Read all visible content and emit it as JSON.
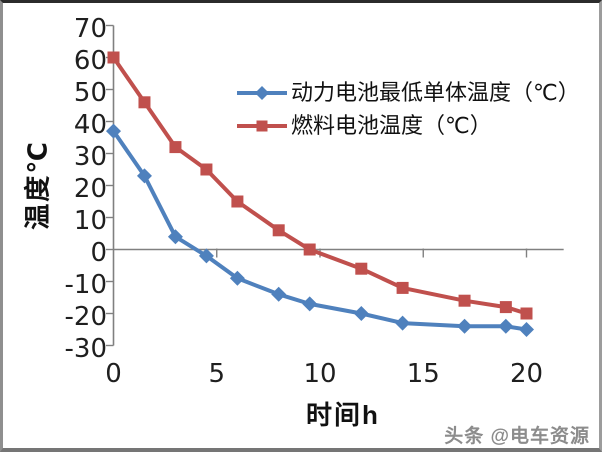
{
  "watermark": {
    "text": "头条 @电车资源",
    "color": "#8c8c8c"
  },
  "chart_data": {
    "type": "line",
    "title": "",
    "xlabel": "时间h",
    "ylabel": "温度℃",
    "x": [
      0,
      1.5,
      3,
      4.5,
      6,
      8,
      9.5,
      12,
      14,
      17,
      19,
      20
    ],
    "series": [
      {
        "name": "动力电池最低单体温度（℃）",
        "color": "#4F81BD",
        "marker": "diamond",
        "values": [
          37,
          23,
          4,
          -2,
          -9,
          -14,
          -17,
          -20,
          -23,
          -24,
          -24,
          -25
        ]
      },
      {
        "name": "燃料电池温度（℃）",
        "color": "#C0504D",
        "marker": "square",
        "values": [
          60,
          46,
          32,
          25,
          15,
          6,
          0,
          -6,
          -12,
          -16,
          -18,
          -20
        ]
      }
    ],
    "xlim": [
      0,
      21.8
    ],
    "ylim": [
      -30,
      70
    ],
    "xticks": [
      0,
      5,
      10,
      15,
      20
    ],
    "yticks": [
      70,
      60,
      50,
      40,
      30,
      20,
      10,
      0,
      -10,
      -20,
      -30
    ],
    "axis_color": "#808080",
    "grid": false,
    "legend_position": "inside-top-right"
  }
}
